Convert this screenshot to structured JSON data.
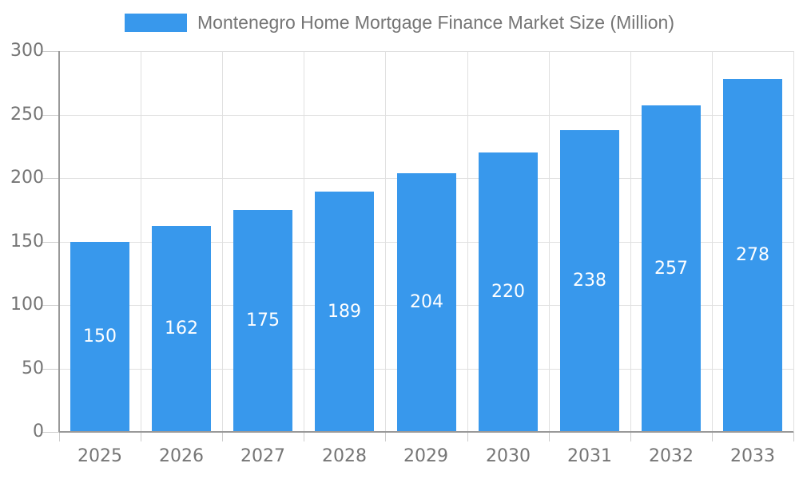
{
  "legend": {
    "label": "Montenegro Home Mortgage Finance Market Size (Million)"
  },
  "chart_data": {
    "type": "bar",
    "title": "Montenegro Home Mortgage Finance Market Size (Million)",
    "categories": [
      "2025",
      "2026",
      "2027",
      "2028",
      "2029",
      "2030",
      "2031",
      "2032",
      "2033"
    ],
    "values": [
      150,
      162,
      175,
      189,
      204,
      220,
      238,
      257,
      278
    ],
    "xlabel": "",
    "ylabel": "",
    "ylim": [
      0,
      300
    ],
    "yticks": [
      0,
      50,
      100,
      150,
      200,
      250,
      300
    ],
    "grid": true,
    "legend_position": "top-center",
    "value_label_position": "inside-center"
  },
  "colors": {
    "bar": "#3898ec",
    "axis_text": "#757575",
    "axis_line": "#999999",
    "gridline": "#e0e0e0",
    "tick": "#cccccc",
    "value_label": "#ffffff",
    "background": "#ffffff"
  }
}
